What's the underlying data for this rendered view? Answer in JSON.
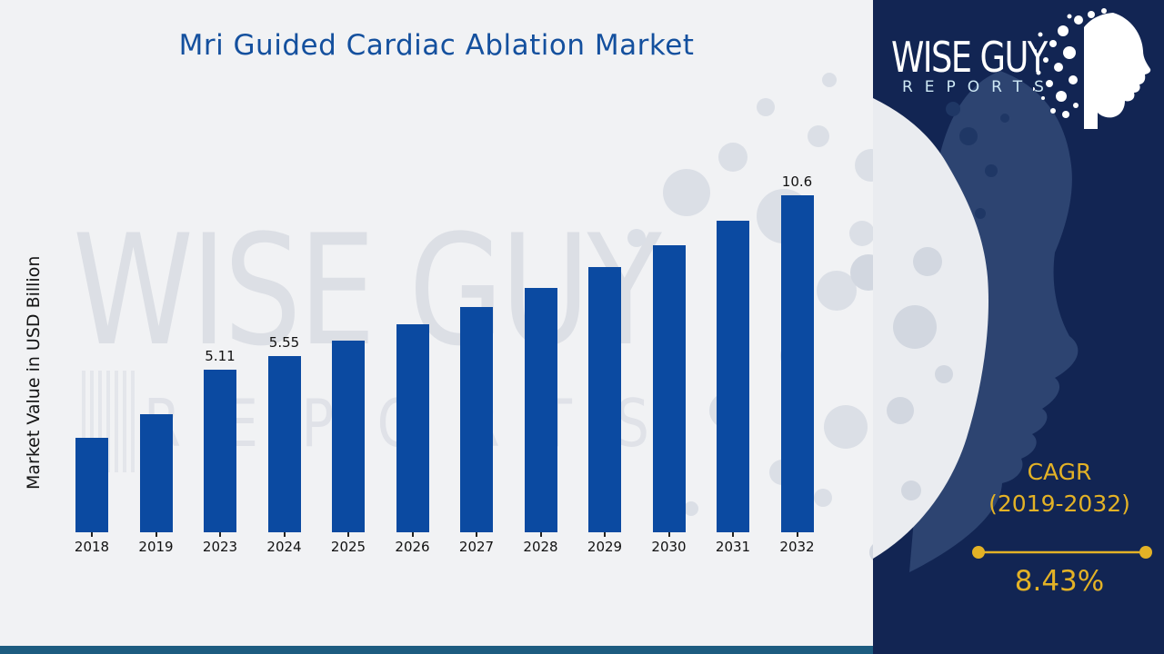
{
  "title": "Mri Guided Cardiac Ablation Market",
  "watermark": {
    "line1": "WISE GUY",
    "line2": "REPORTS"
  },
  "panel": {
    "logo": {
      "line1": "WISE GUY",
      "line2": "REPORTS"
    },
    "cagr": {
      "label": "CAGR",
      "range": "(2019-2032)",
      "value": "8.43%"
    }
  },
  "colors": {
    "bar": "#0b4aa1",
    "panel_navy": "#122553",
    "accent_gold": "#e3b226",
    "title_blue": "#14509e",
    "teal_strip": "#1d5c80",
    "face_navy": "#2d4471",
    "blob_light": "#eaecf0"
  },
  "chart_data": {
    "type": "bar",
    "title": "Mri Guided Cardiac Ablation Market",
    "xlabel": "",
    "ylabel": "Market Value in USD Billion",
    "categories": [
      "2018",
      "2019",
      "2023",
      "2024",
      "2025",
      "2026",
      "2027",
      "2028",
      "2029",
      "2030",
      "2031",
      "2032"
    ],
    "values": [
      2.96,
      3.7,
      5.11,
      5.55,
      6.02,
      6.53,
      7.08,
      7.68,
      8.33,
      9.03,
      9.79,
      10.6
    ],
    "bar_labels": {
      "2023": "5.11",
      "2024": "5.55",
      "2032": "10.6"
    },
    "unit": "USD Billion",
    "ylim": [
      0,
      11.2
    ],
    "grid": false,
    "legend": null
  }
}
